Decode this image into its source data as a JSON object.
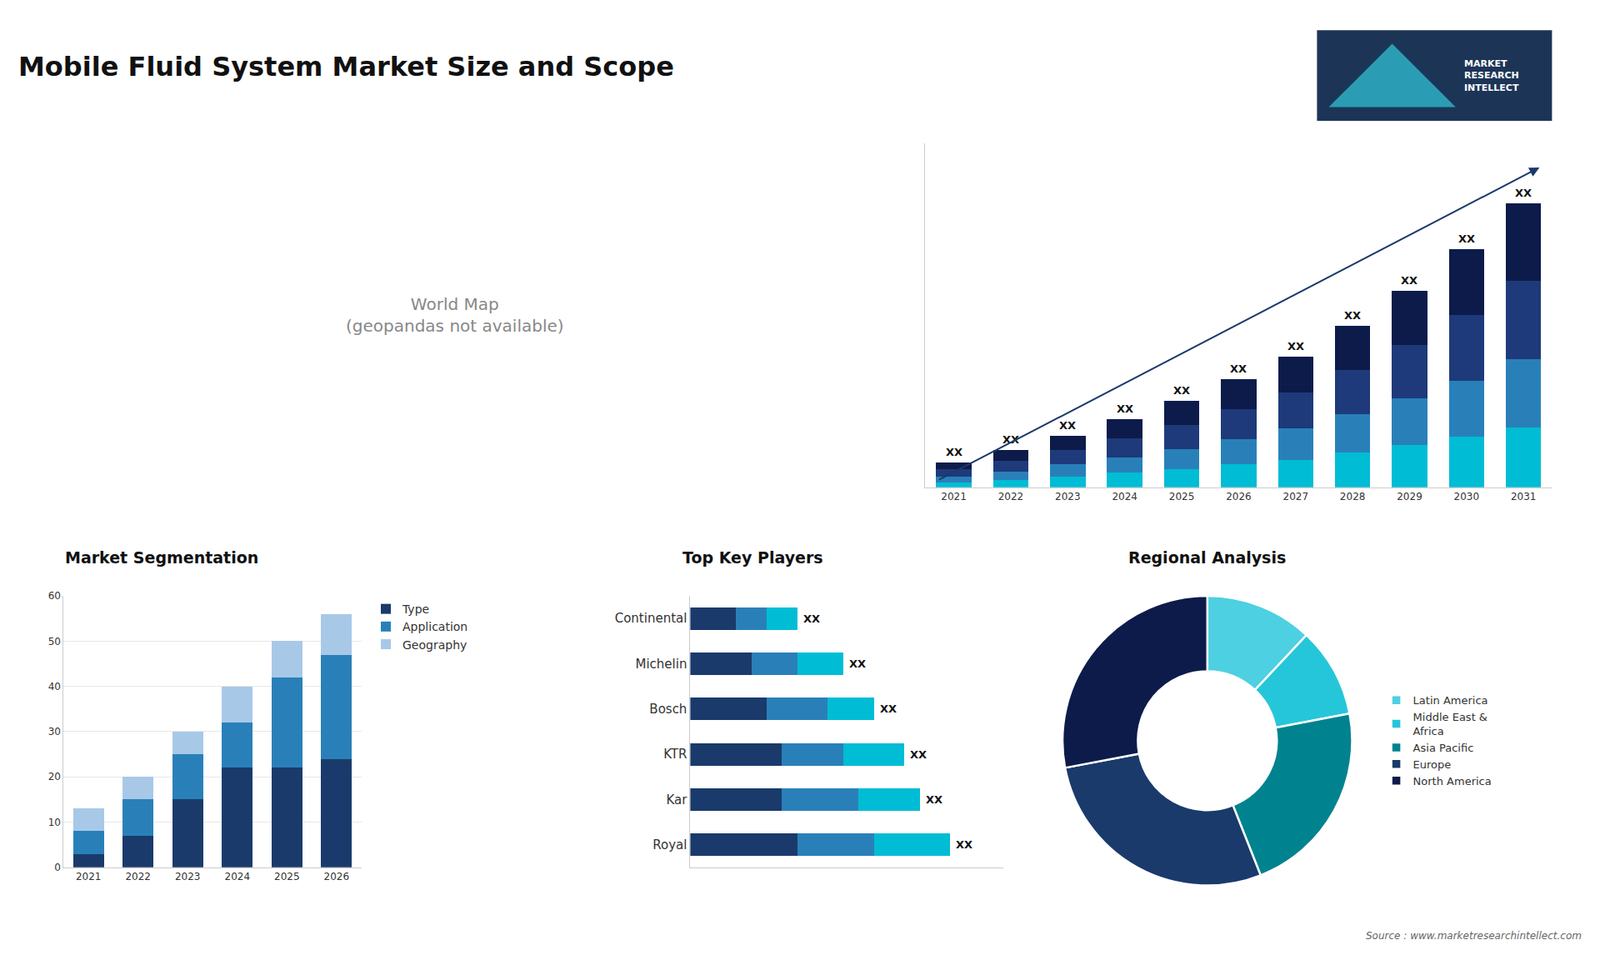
{
  "title": "Mobile Fluid System Market Size and Scope",
  "annotations": [
    "MARKET\nRESEARCH\nINTELLECT",
    "World Map\n(geopandas not available)",
    "Source : www.marketresearchintellect.com"
  ],
  "chart_data": [
    {
      "type": "bar",
      "stacked": true,
      "categories": [
        "2021",
        "2022",
        "2023",
        "2024",
        "2025",
        "2026",
        "2027",
        "2028",
        "2029",
        "2030",
        "2031"
      ],
      "series": [
        {
          "color": "#00bcd4",
          "values": [
            0.4,
            0.6,
            0.9,
            1.2,
            1.5,
            1.9,
            2.3,
            2.9,
            3.5,
            4.2,
            5.0
          ]
        },
        {
          "color": "#2980b9",
          "values": [
            0.5,
            0.7,
            1.0,
            1.3,
            1.7,
            2.1,
            2.6,
            3.2,
            3.9,
            4.7,
            5.7
          ]
        },
        {
          "color": "#1e3a7a",
          "values": [
            0.6,
            0.9,
            1.2,
            1.6,
            2.0,
            2.5,
            3.0,
            3.7,
            4.5,
            5.5,
            6.5
          ]
        },
        {
          "color": "#0d1b4b",
          "values": [
            0.6,
            0.9,
            1.2,
            1.6,
            2.0,
            2.5,
            3.0,
            3.7,
            4.5,
            5.5,
            6.5
          ]
        }
      ],
      "ylim": [
        0,
        28.7
      ],
      "yticks": [],
      "tick_labels": "x",
      "grid": false,
      "annotations": [
        "XX",
        "XX",
        "XX",
        "XX",
        "XX",
        "XX",
        "XX",
        "XX",
        "XX",
        "XX",
        "XX"
      ]
    },
    {
      "type": "bar",
      "title": "Market Segmentation",
      "stacked": true,
      "categories": [
        "2021",
        "2022",
        "2023",
        "2024",
        "2025",
        "2026"
      ],
      "series": [
        {
          "name": "Type",
          "color": "#1a3a6b",
          "values": [
            3,
            7,
            15,
            22,
            22,
            24
          ]
        },
        {
          "name": "Application",
          "color": "#2980b9",
          "values": [
            5,
            8,
            10,
            10,
            20,
            23
          ]
        },
        {
          "name": "Geography",
          "color": "#a8c8e8",
          "values": [
            5,
            5,
            5,
            8,
            8,
            9
          ]
        }
      ],
      "ylim": [
        0,
        60
      ],
      "yticks": [
        0,
        10,
        20,
        30,
        40,
        50,
        60
      ],
      "grid": true,
      "legend": "right"
    },
    {
      "type": "bar",
      "title": "Top Key Players",
      "orientation": "horizontal",
      "stacked": true,
      "categories": [
        "Royal",
        "Kar",
        "KTR",
        "Bosch",
        "Michelin",
        "Continental"
      ],
      "series": [
        {
          "color": "#1a3a6b",
          "values": [
            7,
            6,
            6,
            5,
            4,
            3
          ]
        },
        {
          "color": "#2980b9",
          "values": [
            5,
            5,
            4,
            4,
            3,
            2
          ]
        },
        {
          "color": "#00bcd4",
          "values": [
            5,
            4,
            4,
            3,
            3,
            2
          ]
        }
      ],
      "xlim": [
        0,
        20.5
      ],
      "xticks": [],
      "tick_labels": "y",
      "grid": false,
      "annotations": [
        "XX",
        "XX",
        "XX",
        "XX",
        "XX",
        "XX"
      ]
    },
    {
      "type": "donut",
      "title": "Regional Analysis",
      "categories": [
        "Latin America",
        "Middle East &\nAfrica",
        "Asia Pacific",
        "Europe",
        "North America"
      ],
      "values": [
        12,
        10,
        22,
        28,
        28
      ],
      "colors": [
        "#4dd0e1",
        "#26c6da",
        "#00838f",
        "#1a3a6b",
        "#0d1b4b"
      ],
      "legend": "right"
    }
  ]
}
